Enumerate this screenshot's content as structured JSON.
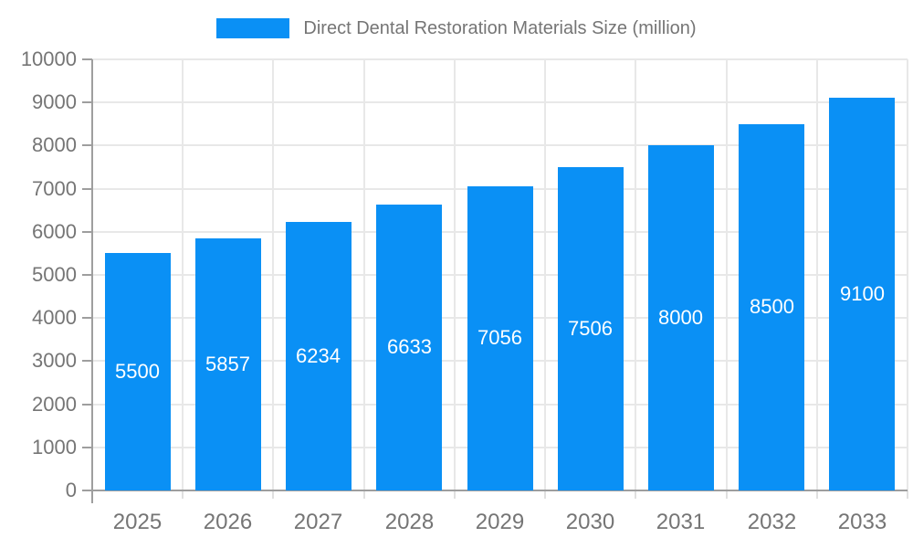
{
  "legend": {
    "label": "Direct Dental Restoration Materials Size (million)"
  },
  "chart_data": {
    "type": "bar",
    "title": "Direct Dental Restoration Materials Size (million)",
    "categories": [
      "2025",
      "2026",
      "2027",
      "2028",
      "2029",
      "2030",
      "2031",
      "2032",
      "2033"
    ],
    "values": [
      5500,
      5857,
      6234,
      6633,
      7056,
      7506,
      8000,
      8500,
      9100
    ],
    "xlabel": "",
    "ylabel": "",
    "ylim": [
      0,
      10000
    ],
    "ytick_step": 1000,
    "legend_position": "top-center",
    "grid": true,
    "bar_color": "#0A90F5",
    "value_label_color": "#FFFFFF",
    "axis_label_color": "#757575",
    "axis_line_color": "#9E9E9E",
    "grid_color": "#E8E8E8"
  }
}
